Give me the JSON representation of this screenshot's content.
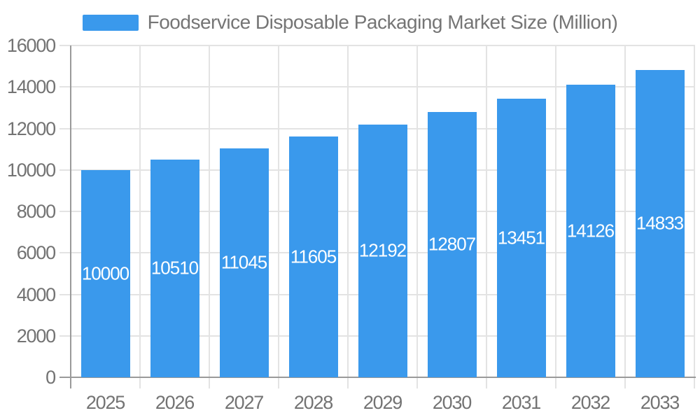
{
  "legend": {
    "label": "Foodservice Disposable Packaging Market Size (Million)"
  },
  "chart_data": {
    "type": "bar",
    "title": "",
    "xlabel": "",
    "ylabel": "",
    "categories": [
      "2025",
      "2026",
      "2027",
      "2028",
      "2029",
      "2030",
      "2031",
      "2032",
      "2033"
    ],
    "series": [
      {
        "name": "Foodservice Disposable Packaging Market Size (Million)",
        "values": [
          10000,
          10510,
          11045,
          11605,
          12192,
          12807,
          13451,
          14126,
          14833
        ]
      }
    ],
    "value_labels_shown": true,
    "value_label_position": "inside-middle",
    "ylim": [
      0,
      16000
    ],
    "y_ticks": [
      0,
      2000,
      4000,
      6000,
      8000,
      10000,
      12000,
      14000,
      16000
    ],
    "grid": "both",
    "legend_position": "top-center",
    "colors": {
      "bar": "#3a99ec",
      "value_label_text": "#ffffff",
      "axis_line": "#9a9a9a",
      "gridline": "#e3e3e3",
      "tick_label_text": "#737373",
      "legend_text": "#757575",
      "background": "#ffffff"
    }
  }
}
